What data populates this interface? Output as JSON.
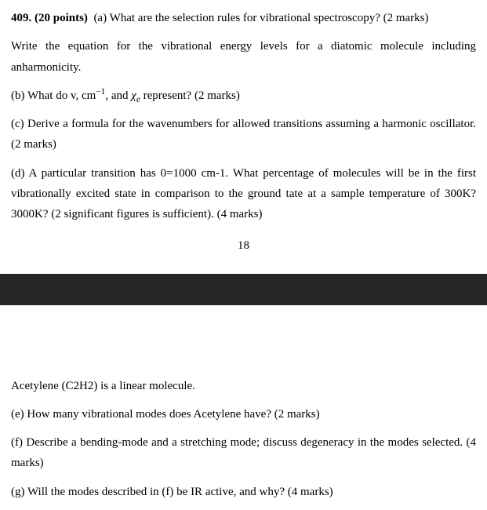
{
  "header": {
    "number": "409.",
    "points": "(20 points)"
  },
  "page_number": "18",
  "q_a": {
    "label": "(a)",
    "text1": "What are the selection rules for vibrational spectroscopy? (2 marks)",
    "text2": "Write the equation for the vibrational energy levels for a diatomic molecule including anharmonicity."
  },
  "q_b": {
    "label": "(b)",
    "pre": "What do v, cm",
    "sup": "−1",
    "mid": ", and ",
    "chi": "χ",
    "chi_sub": "e",
    "post": " represent? (2 marks)"
  },
  "q_c": {
    "label": "(c)",
    "text": "Derive a formula for the wavenumbers for allowed transitions assuming a harmonic oscillator. (2 marks)"
  },
  "q_d": {
    "label": "(d)",
    "text": "A particular transition has 0=1000 cm-1. What percentage of molecules will be in the first vibrationally excited state in comparison to the ground tate at a sample temperature of 300K? 3000K? (2 significant figures is sufficient). (4 marks)"
  },
  "acetylene": "Acetylene (C2H2) is a linear molecule.",
  "q_e": {
    "label": "(e)",
    "text": "How many vibrational modes does Acetylene have? (2 marks)"
  },
  "q_f": {
    "label": "(f)",
    "text": "Describe a bending-mode and a stretching mode; discuss degeneracy in the modes selected. (4 marks)"
  },
  "q_g": {
    "label": "(g)",
    "text": "Will the modes described in (f) be IR active, and why? (4 marks)"
  }
}
